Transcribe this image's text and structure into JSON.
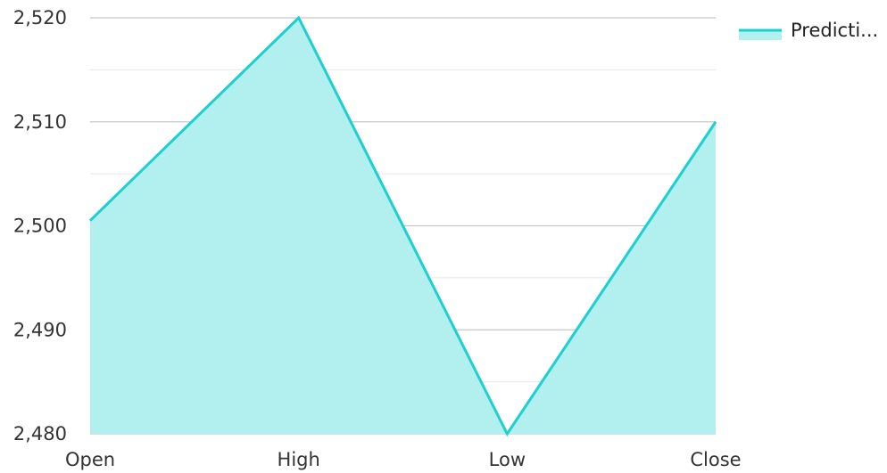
{
  "chart_data": {
    "type": "area",
    "categories": [
      "Open",
      "High",
      "Low",
      "Close"
    ],
    "series": [
      {
        "name": "Predicti...",
        "values": [
          2500.5,
          2520,
          2480,
          2510
        ]
      }
    ],
    "ylim": [
      2480,
      2520
    ],
    "y_ticks": [
      "2,480",
      "2,490",
      "2,500",
      "2,510",
      "2,520"
    ],
    "y_tick_values": [
      2480,
      2490,
      2500,
      2510,
      2520
    ],
    "grid": true,
    "legend_position": "top-right",
    "colors": {
      "line": "#1ecfcf",
      "fill": "#b2efef",
      "major_grid": "#c8c8c8",
      "minor_grid": "#e6e6e6",
      "axis_text": "#333333"
    }
  }
}
